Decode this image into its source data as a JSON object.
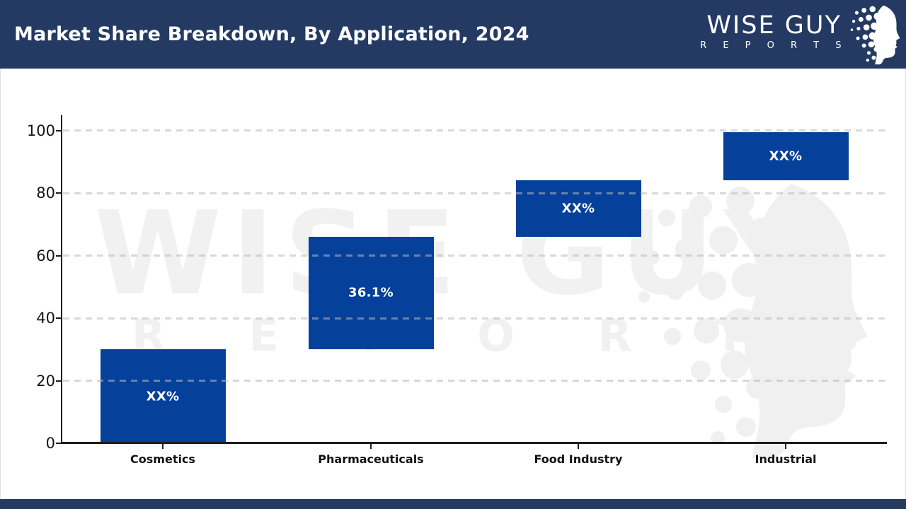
{
  "header": {
    "title": "Market Share Breakdown, By Application, 2024",
    "logo": {
      "name_top": "WISE GUY",
      "name_bottom": "R E P O R T S"
    }
  },
  "watermark": {
    "line1": "WISE GUY",
    "line2": "R E P O R T S"
  },
  "colors": {
    "band_navy": "#243a63",
    "bar_blue": "#05409a",
    "grid_gray": "#d9d9d9",
    "axis_dark": "#1c1c1c",
    "bar_label_white": "#ffffff",
    "watermark_gray": "#f1f1f1"
  },
  "chart_data": {
    "type": "bar",
    "subtype": "stepped-waterfall",
    "title": "Market Share Breakdown, By Application, 2024",
    "categories": [
      "Cosmetics",
      "Pharmaceuticals",
      "Food Industry",
      "Industrial"
    ],
    "series": [
      {
        "name": "Market share (%)",
        "segments": [
          {
            "category": "Cosmetics",
            "start": 0,
            "end": 30,
            "label": "XX%"
          },
          {
            "category": "Pharmaceuticals",
            "start": 30,
            "end": 66.1,
            "label": "36.1%"
          },
          {
            "category": "Food Industry",
            "start": 66.1,
            "end": 84,
            "label": "XX%"
          },
          {
            "category": "Industrial",
            "start": 84,
            "end": 99.4,
            "label": "XX%"
          }
        ]
      }
    ],
    "xlabel": "",
    "ylabel": "",
    "ylim": [
      0,
      105
    ],
    "yticks": [
      0,
      20,
      40,
      60,
      80,
      100
    ],
    "grid": "horizontal-dashed",
    "legend": "none"
  }
}
